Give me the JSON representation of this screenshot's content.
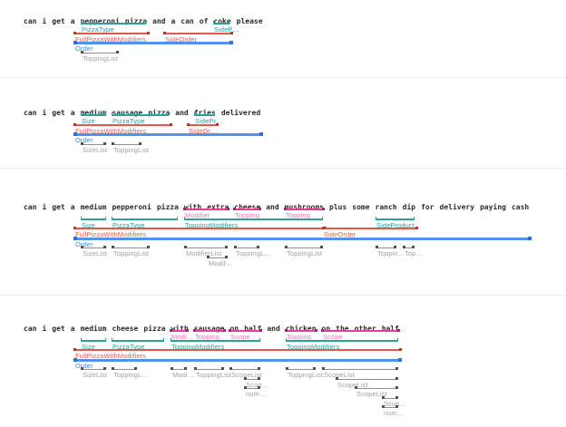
{
  "colors": {
    "teal": {
      "line": "#2aa19c",
      "end": "#1f807c",
      "label": "#2aa19c"
    },
    "pink": {
      "line": "#e93a9d",
      "end": "#bf1579",
      "label": "#ef72b8"
    },
    "red": {
      "line": "#e35744",
      "end": "#ab3a2c",
      "label": "#e3604e"
    },
    "blue": {
      "line": "#4f94e8",
      "end": "#2a6fdb",
      "label": "#4189e4"
    },
    "gray": {
      "line": "#909090",
      "end": "#505050",
      "label": "#a0a0a0"
    }
  },
  "text_color": "#2b2b2b",
  "divider_color": "#ededed",
  "sentences": [
    {
      "text": "can i get a pepperoni pizza and a can of coke please",
      "tokens": [
        "can",
        "i",
        "get",
        "a",
        "pepperoni",
        "pizza",
        "and",
        "a",
        "can",
        "of",
        "coke",
        "please"
      ],
      "rows": [
        [
          {
            "start": 4,
            "end": 5,
            "type": "teal",
            "label": "PizzaType"
          },
          {
            "start": 10,
            "end": 10,
            "type": "teal",
            "label": "SideP…"
          }
        ],
        [
          {
            "start": 4,
            "end": 5,
            "type": "red",
            "label": "FullPizzaWithModifiers"
          },
          {
            "start": 7,
            "end": 10,
            "type": "red",
            "label": "SideOrder"
          }
        ],
        [
          {
            "start": 4,
            "end": 10,
            "type": "blue",
            "label": "Order"
          }
        ],
        [
          {
            "start": 4,
            "end": 4,
            "type": "gray",
            "label": "ToppingList"
          }
        ]
      ]
    },
    {
      "text": "can i get a medium sausage pizza and fries delivered",
      "tokens": [
        "can",
        "i",
        "get",
        "a",
        "medium",
        "sausage",
        "pizza",
        "and",
        "fries",
        "delivered"
      ],
      "rows": [
        [
          {
            "start": 4,
            "end": 4,
            "type": "teal",
            "label": "Size"
          },
          {
            "start": 5,
            "end": 6,
            "type": "teal",
            "label": "PizzaType"
          },
          {
            "start": 8,
            "end": 8,
            "type": "teal",
            "label": "SidePr…"
          }
        ],
        [
          {
            "start": 4,
            "end": 6,
            "type": "red",
            "label": "FullPizzaWithModifiers"
          },
          {
            "start": 8,
            "end": 8,
            "type": "red",
            "label": "SideOr…"
          }
        ],
        [
          {
            "start": 4,
            "end": 9,
            "type": "blue",
            "label": "Order"
          }
        ],
        [
          {
            "start": 4,
            "end": 4,
            "type": "gray",
            "label": "SizeList"
          },
          {
            "start": 5,
            "end": 5,
            "type": "gray",
            "label": "ToppingList"
          }
        ]
      ]
    },
    {
      "text": "can i get a medium pepperoni pizza with extra cheese and mushrooms plus some ranch dip for delivery paying cash",
      "tokens": [
        "can",
        "i",
        "get",
        "a",
        "medium",
        "pepperoni",
        "pizza",
        "with",
        "extra",
        "cheese",
        "and",
        "mushrooms",
        "plus",
        "some",
        "ranch",
        "dip",
        "for",
        "delivery",
        "paying",
        "cash"
      ],
      "rows": [
        [
          {
            "start": 7,
            "end": 8,
            "type": "pink",
            "label": "Modifier"
          },
          {
            "start": 9,
            "end": 9,
            "type": "pink",
            "label": "Topping"
          },
          {
            "start": 11,
            "end": 11,
            "type": "pink",
            "label": "Topping"
          }
        ],
        [
          {
            "start": 4,
            "end": 4,
            "type": "teal",
            "label": "Size"
          },
          {
            "start": 5,
            "end": 6,
            "type": "teal",
            "label": "PizzaType"
          },
          {
            "start": 7,
            "end": 11,
            "type": "teal",
            "label": "ToppingModifiers"
          },
          {
            "start": 14,
            "end": 15,
            "type": "teal",
            "label": "SideProduct"
          }
        ],
        [
          {
            "start": 4,
            "end": 11,
            "type": "red",
            "label": "FullPizzaWithModifiers"
          },
          {
            "start": 12,
            "end": 15,
            "type": "red",
            "label": "SideOrder"
          }
        ],
        [
          {
            "start": 4,
            "end": 19,
            "type": "blue",
            "label": "Order"
          }
        ],
        [
          {
            "start": 4,
            "end": 4,
            "type": "gray",
            "label": "SizeList"
          },
          {
            "start": 5,
            "end": 5,
            "type": "gray",
            "label": "ToppingList"
          },
          {
            "start": 7,
            "end": 8,
            "type": "gray",
            "label": "ModifierList"
          },
          {
            "start": 9,
            "end": 9,
            "type": "gray",
            "label": "ToppingL…"
          },
          {
            "start": 11,
            "end": 11,
            "type": "gray",
            "label": "ToppingList"
          },
          {
            "start": 14,
            "end": 14,
            "type": "gray",
            "label": "Toppin…"
          },
          {
            "start": 15,
            "end": 15,
            "type": "gray",
            "label": "Top…"
          }
        ],
        [
          {
            "start": 8,
            "end": 8,
            "type": "gray",
            "label": "Modif…"
          }
        ]
      ]
    },
    {
      "text": "can i get a medium cheese pizza with sausage on half and chicken on the other half",
      "tokens": [
        "can",
        "i",
        "get",
        "a",
        "medium",
        "cheese",
        "pizza",
        "with",
        "sausage",
        "on",
        "half",
        "and",
        "chicken",
        "on",
        "the",
        "other",
        "half"
      ],
      "rows": [
        [
          {
            "start": 7,
            "end": 7,
            "type": "pink",
            "label": "Modi…"
          },
          {
            "start": 8,
            "end": 8,
            "type": "pink",
            "label": "Topping"
          },
          {
            "start": 9,
            "end": 10,
            "type": "pink",
            "label": "Scope"
          },
          {
            "start": 12,
            "end": 12,
            "type": "pink",
            "label": "Topping"
          },
          {
            "start": 13,
            "end": 16,
            "type": "pink",
            "label": "Scope"
          }
        ],
        [
          {
            "start": 4,
            "end": 4,
            "type": "teal",
            "label": "Size"
          },
          {
            "start": 5,
            "end": 6,
            "type": "teal",
            "label": "PizzaType"
          },
          {
            "start": 7,
            "end": 10,
            "type": "teal",
            "label": "ToppingModifiers"
          },
          {
            "start": 12,
            "end": 16,
            "type": "teal",
            "label": "ToppingModifiers"
          }
        ],
        [
          {
            "start": 4,
            "end": 16,
            "type": "red",
            "label": "FullPizzaWithModifiers"
          }
        ],
        [
          {
            "start": 4,
            "end": 16,
            "type": "blue",
            "label": "Order"
          }
        ],
        [
          {
            "start": 4,
            "end": 4,
            "type": "gray",
            "label": "SizeList"
          },
          {
            "start": 5,
            "end": 5,
            "type": "gray",
            "label": "ToppingL…"
          },
          {
            "start": 7,
            "end": 7,
            "type": "gray",
            "label": "Modi…"
          },
          {
            "start": 8,
            "end": 8,
            "type": "gray",
            "label": "ToppingList"
          },
          {
            "start": 9,
            "end": 10,
            "type": "gray",
            "label": "ScopeList"
          },
          {
            "start": 12,
            "end": 12,
            "type": "gray",
            "label": "ToppingList"
          },
          {
            "start": 13,
            "end": 16,
            "type": "gray",
            "label": "ScopeList"
          }
        ],
        [
          {
            "start": 10,
            "end": 10,
            "type": "gray",
            "label": "Scop…"
          },
          {
            "start": 14,
            "end": 16,
            "type": "gray",
            "label": "ScopeList"
          }
        ],
        [
          {
            "start": 10,
            "end": 10,
            "type": "gray",
            "label": "num…"
          },
          {
            "start": 15,
            "end": 16,
            "type": "gray",
            "label": "ScopeList"
          }
        ],
        [
          {
            "start": 16,
            "end": 16,
            "type": "gray",
            "label": "Scop…"
          }
        ],
        [
          {
            "start": 16,
            "end": 16,
            "type": "gray",
            "label": "num…"
          }
        ]
      ]
    }
  ]
}
